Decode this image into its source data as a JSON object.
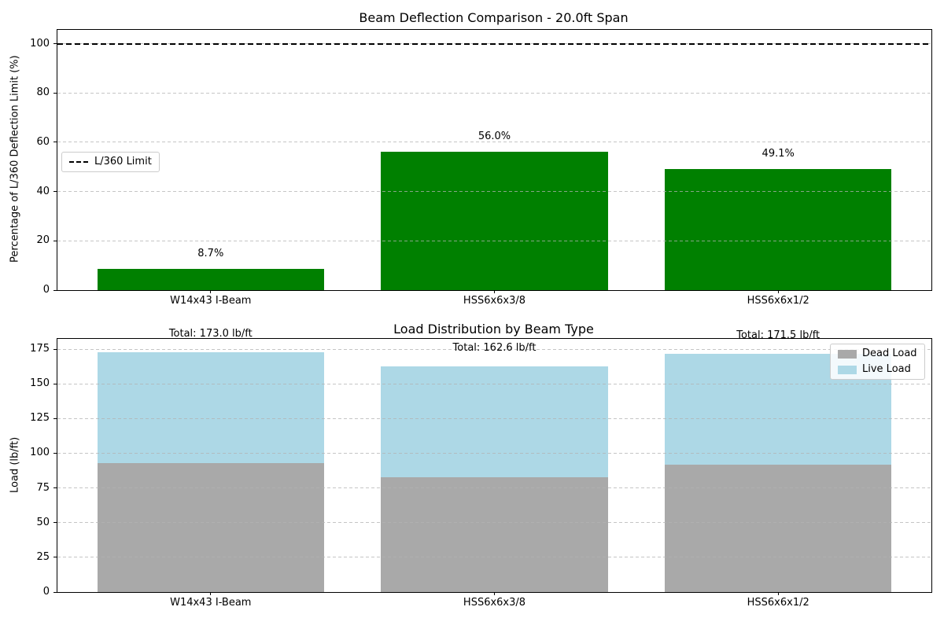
{
  "figure": {
    "background": "#ffffff"
  },
  "chart_data": [
    {
      "type": "bar",
      "title": "Beam Deflection Comparison - 20.0ft Span",
      "ylabel": "Percentage of L/360 Deflection Limit (%)",
      "xlabel": "",
      "categories": [
        "W14x43 I-Beam",
        "HSS6x6x3/8",
        "HSS6x6x1/2"
      ],
      "values": [
        8.7,
        56.0,
        49.1
      ],
      "bar_labels": [
        "8.7%",
        "56.0%",
        "49.1%"
      ],
      "bar_color": "#008000",
      "yticks": [
        0,
        20,
        40,
        60,
        80,
        100
      ],
      "ylim": [
        0,
        105.6
      ],
      "grid": true,
      "threshold": {
        "value": 100,
        "label": "L/360 Limit",
        "color": "#000000",
        "style": "dashed"
      },
      "legend_position": "middle-left"
    },
    {
      "type": "stacked-bar",
      "title": "Load Distribution by Beam Type",
      "ylabel": "Load (lb/ft)",
      "xlabel": "",
      "categories": [
        "W14x43 I-Beam",
        "HSS6x6x3/8",
        "HSS6x6x1/2"
      ],
      "series": [
        {
          "name": "Dead Load",
          "values": [
            93.0,
            82.6,
            91.5
          ],
          "color": "#a9a9a9"
        },
        {
          "name": "Live Load",
          "values": [
            80.0,
            80.0,
            80.0
          ],
          "color": "#add8e6"
        }
      ],
      "totals": [
        173.0,
        162.6,
        171.5
      ],
      "total_labels": [
        "Total: 173.0 lb/ft",
        "Total: 162.6 lb/ft",
        "Total: 171.5 lb/ft"
      ],
      "yticks": [
        0,
        25,
        50,
        75,
        100,
        125,
        150,
        175
      ],
      "ylim": [
        0,
        182.4
      ],
      "grid": true,
      "legend_position": "top-right"
    }
  ]
}
